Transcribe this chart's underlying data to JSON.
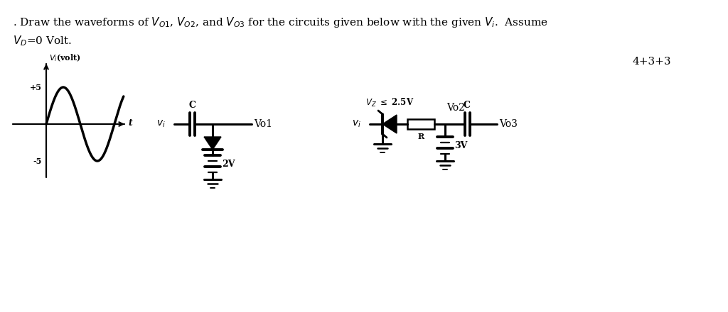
{
  "background_color": "#f5f5f0",
  "fig_width": 10.24,
  "fig_height": 4.4,
  "dpi": 100,
  "top_text": ". Draw the waveforms of $V_{O1}$, $V_{O2}$, and $V_{O3}$ for the circuits given below with the given $V_i$.  Assume",
  "sub_text": "$V_D$=0 Volt.",
  "marks": "4+3+3",
  "vi_label": "$V_i$(volt)",
  "t_label": "t",
  "plus5": "+5",
  "minus5": "-5",
  "c_label1": "C",
  "c_label2": "C",
  "vi1_label": "$v_i$",
  "vi2_label": "$v_i$",
  "vo1_label": "Vo1",
  "vo2_label": "Vo2",
  "vo3_label": "Vo3",
  "vz_label": "$V_Z$ $\\leq$ 2.5V",
  "bat1_label": "2V",
  "bat2_label": "3V",
  "r_label": "R"
}
